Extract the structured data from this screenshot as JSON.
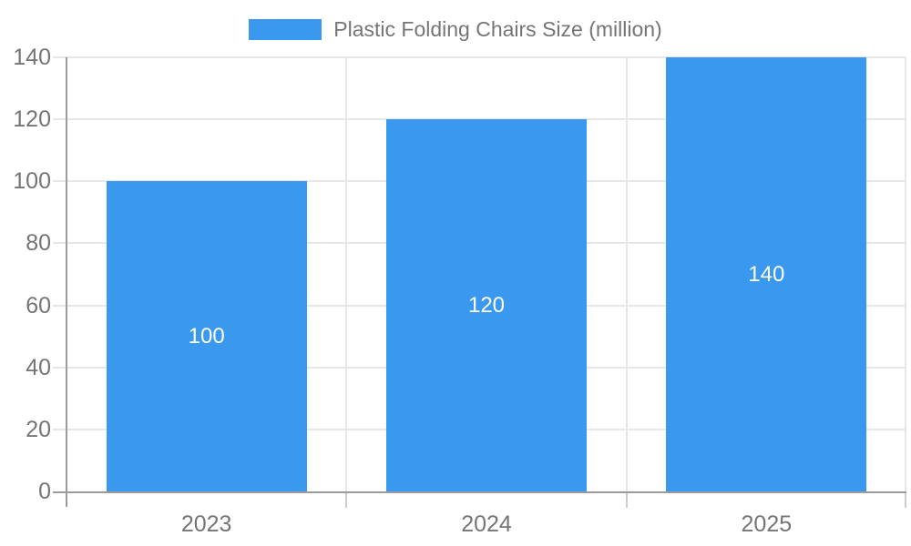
{
  "chart_data": {
    "type": "bar",
    "title": "",
    "legend": "Plastic Folding Chairs Size (million)",
    "legend_position": "top",
    "categories": [
      "2023",
      "2024",
      "2025"
    ],
    "series": [
      {
        "name": "Plastic Folding Chairs Size (million)",
        "values": [
          100,
          120,
          140
        ]
      }
    ],
    "bar_labels": [
      "100",
      "120",
      "140"
    ],
    "xlabel": "",
    "ylabel": "",
    "ylim": [
      0,
      140
    ],
    "yticks": [
      0,
      20,
      40,
      60,
      80,
      100,
      120,
      140
    ],
    "grid": true,
    "colors": {
      "bar": "#3a99ee",
      "text": "#757575",
      "bar_label_text": "#ffffff",
      "grid": "#e7e7e7",
      "axis": "#9b9b9b",
      "minor_tick": "#cccccc",
      "background": "#ffffff"
    }
  }
}
